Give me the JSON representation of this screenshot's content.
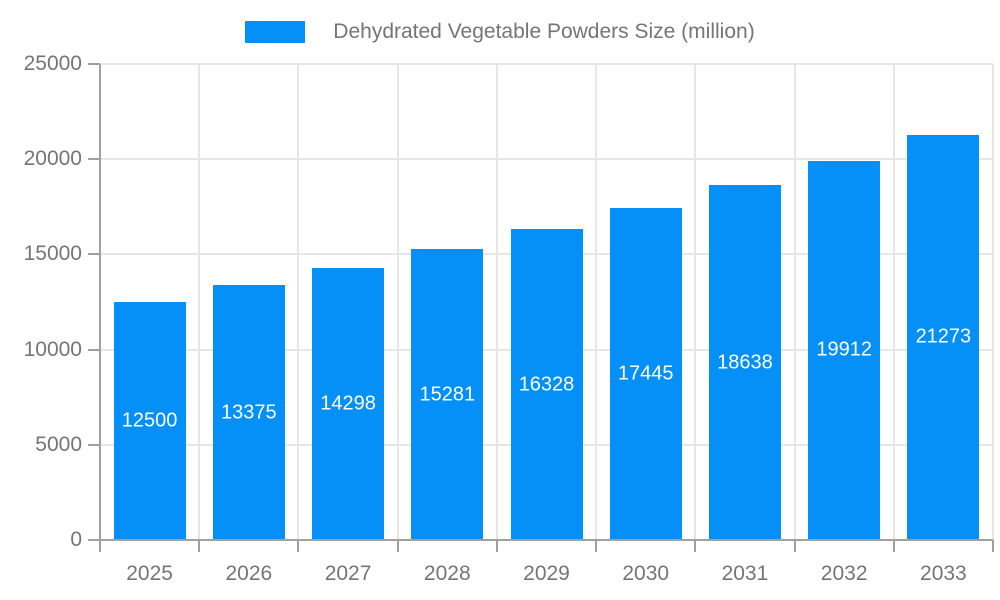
{
  "chart_data": {
    "type": "bar",
    "title": "Dehydrated Vegetable Powders Size (million)",
    "legend_label": "Dehydrated Vegetable Powders Size (million)",
    "legend_position": "top",
    "categories": [
      "2025",
      "2026",
      "2027",
      "2028",
      "2029",
      "2030",
      "2031",
      "2032",
      "2033"
    ],
    "values": [
      12500,
      13375,
      14298,
      15281,
      16328,
      17445,
      18638,
      19912,
      21273
    ],
    "xlabel": "",
    "ylabel": "",
    "ylim": [
      0,
      25000
    ],
    "yticks": [
      0,
      5000,
      10000,
      15000,
      20000,
      25000
    ],
    "grid": true,
    "bar_labels_inside": true,
    "colors": {
      "bar": "#0590f7",
      "bar_label_text": "#ffffff",
      "grid_line": "#e6e6e6",
      "axis_line": "#a0a0a0",
      "tick_text": "#757575",
      "legend_text": "#757575",
      "background": "#ffffff"
    }
  }
}
